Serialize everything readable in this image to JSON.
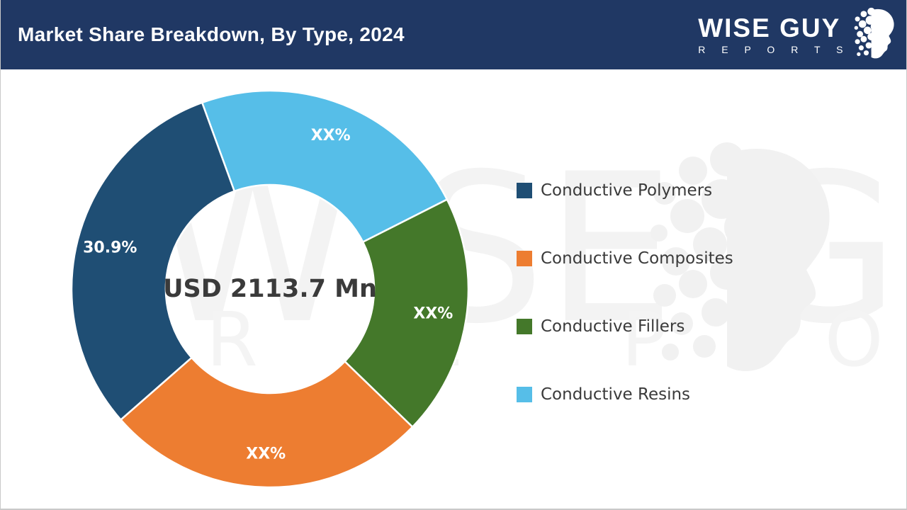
{
  "header": {
    "title": "Market Share Breakdown, By Type, 2024",
    "background_color": "#203864",
    "logo": {
      "line1": "WISE GUY",
      "line2": "R E P O R T S"
    }
  },
  "watermark": {
    "line1": "WISE GUY",
    "line2": "R E P O R T S"
  },
  "chart_data": {
    "type": "pie",
    "subtype": "donut",
    "title": "Market Share Breakdown, By Type, 2024",
    "center_label": "USD 2113.7 Mn",
    "start_angle_deg": -20,
    "direction": "clockwise",
    "inner_radius_ratio": 0.525,
    "segments": [
      {
        "name": "Conductive Resins",
        "value_pct": 23.1,
        "label": "XX%",
        "color": "#56BEE8"
      },
      {
        "name": "Conductive Fillers",
        "value_pct": 19.7,
        "label": "XX%",
        "color": "#44782A"
      },
      {
        "name": "Conductive Composites",
        "value_pct": 26.3,
        "label": "XX%",
        "color": "#ED7D31"
      },
      {
        "name": "Conductive Polymers",
        "value_pct": 30.9,
        "label": "30.9%",
        "color": "#1F4E74"
      }
    ],
    "legend_position": "right",
    "legend": [
      {
        "label": "Conductive Polymers",
        "color": "#1F4E74"
      },
      {
        "label": "Conductive Composites",
        "color": "#ED7D31"
      },
      {
        "label": "Conductive Fillers",
        "color": "#44782A"
      },
      {
        "label": "Conductive Resins",
        "color": "#56BEE8"
      }
    ]
  }
}
